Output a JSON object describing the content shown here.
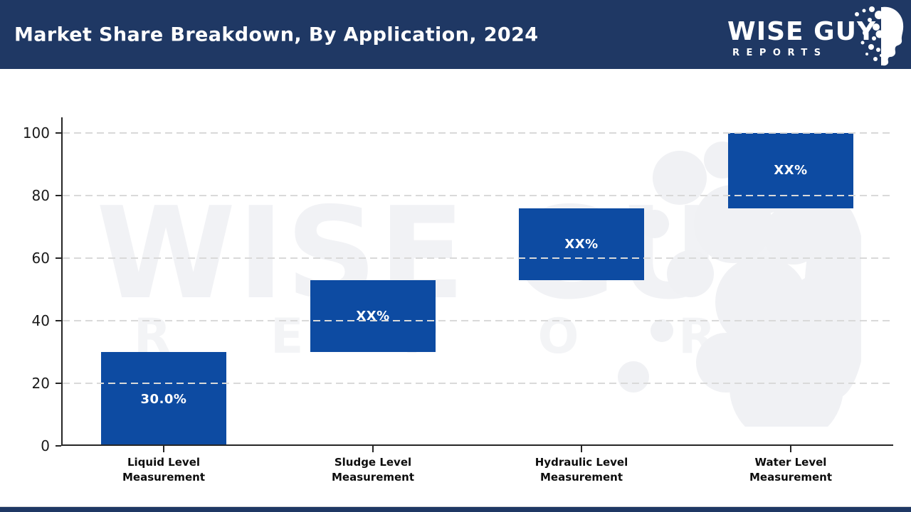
{
  "header": {
    "title": "Market Share Breakdown, By Application, 2024",
    "logo_line1": "WISE GUY",
    "logo_line2": "REPORTS"
  },
  "watermark": {
    "line1": "WISE GUY",
    "line2": "R E P O R T S"
  },
  "colors": {
    "header_bg": "#1f3864",
    "bar": "#0d4ba2",
    "bar_label": "#ffffff",
    "axis": "#262626",
    "grid": "#d9d9d9"
  },
  "chart_data": {
    "type": "bar",
    "subtype": "waterfall",
    "title": "Market Share Breakdown, By Application, 2024",
    "categories": [
      "Liquid Level\nMeasurement",
      "Sludge Level\nMeasurement",
      "Hydraulic Level\nMeasurement",
      "Water Level\nMeasurement"
    ],
    "segments": [
      {
        "category": "Liquid Level Measurement",
        "start": 0,
        "end": 30,
        "label": "30.0%"
      },
      {
        "category": "Sludge Level Measurement",
        "start": 30,
        "end": 53,
        "label": "XX%"
      },
      {
        "category": "Hydraulic Level Measurement",
        "start": 53,
        "end": 76,
        "label": "XX%"
      },
      {
        "category": "Water Level Measurement",
        "start": 76,
        "end": 100,
        "label": "XX%"
      }
    ],
    "ylim": [
      0,
      100
    ],
    "yticks": [
      0,
      20,
      40,
      60,
      80,
      100
    ],
    "grid": "horizontal-dashed",
    "legend": "none"
  }
}
